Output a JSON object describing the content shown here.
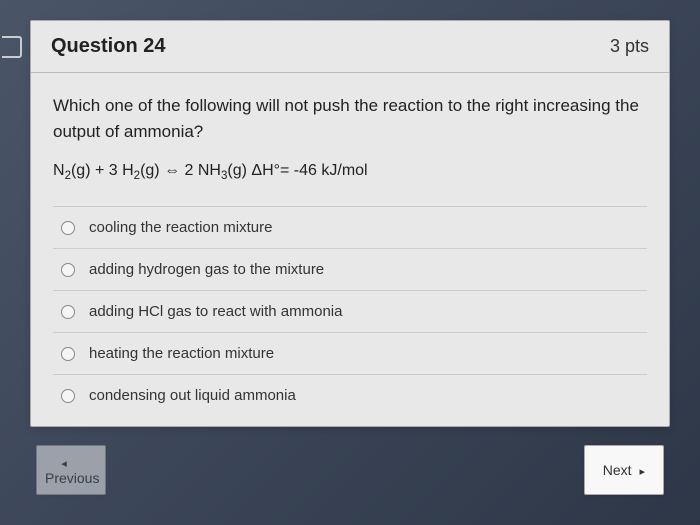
{
  "header": {
    "title": "Question 24",
    "points": "3 pts"
  },
  "prompt": "Which one of the following will not push the reaction to the right increasing the output of ammonia?",
  "equation_html": "N<sub>2</sub>(g) + 3 H<sub>2</sub>(g) ⇔ 2 NH<sub>3</sub>(g)  ΔH°= -46 kJ/mol",
  "options": [
    "cooling the reaction mixture",
    "adding hydrogen gas to the mixture",
    "adding HCl gas to react with ammonia",
    "heating the reaction mixture",
    "condensing out liquid ammonia"
  ],
  "nav": {
    "previous": "Previous",
    "next": "Next"
  }
}
